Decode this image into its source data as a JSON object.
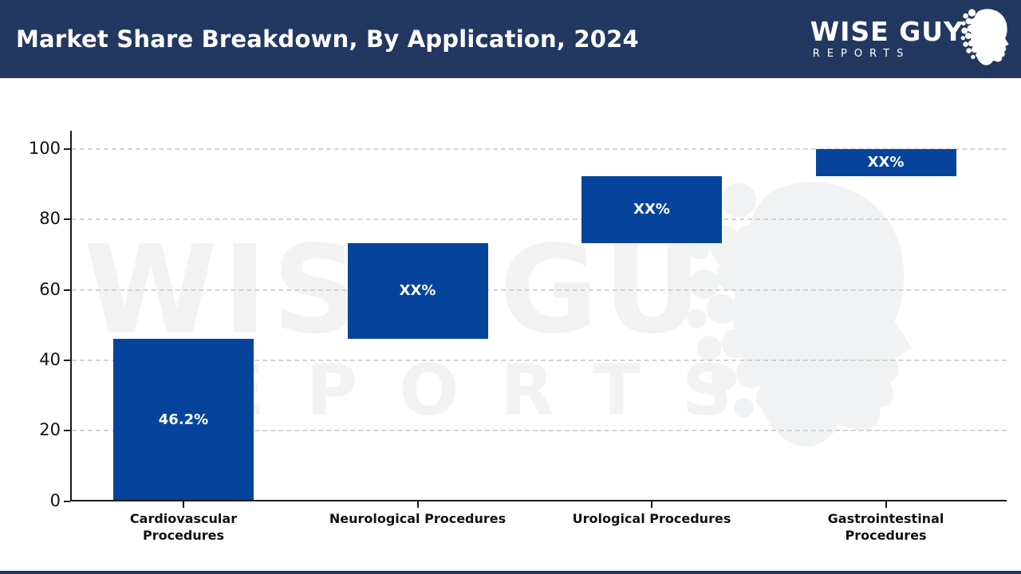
{
  "header": {
    "title": "Market Share Breakdown, By Application, 2024",
    "brand": {
      "line1": "WISE GUY",
      "line2": "REPORTS"
    }
  },
  "watermark": {
    "line1": "WISE GUY",
    "line2": "REPORTS"
  },
  "colors": {
    "header_bg": "#233861",
    "bar": "#05449a",
    "bar_label": "#ffffff",
    "grid": "#d4d4d4",
    "watermark": "#f2f2f3"
  },
  "chart_data": {
    "type": "bar",
    "subtype": "stacked-waterfall-floating-bars",
    "title": "Market Share Breakdown, By Application, 2024",
    "categories": [
      "Cardiovascular Procedures",
      "Neurological Procedures",
      "Urological Procedures",
      "Gastrointestinal Procedures"
    ],
    "series": [
      {
        "name": "Market share (%)",
        "segments": [
          {
            "category": "Cardiovascular Procedures",
            "start": 0,
            "end": 46.2,
            "label": "46.2%"
          },
          {
            "category": "Neurological Procedures",
            "start": 46.2,
            "end": 73.3,
            "label": "XX%"
          },
          {
            "category": "Urological Procedures",
            "start": 73.3,
            "end": 92.3,
            "label": "XX%"
          },
          {
            "category": "Gastrointestinal Procedures",
            "start": 92.3,
            "end": 100,
            "label": "XX%"
          }
        ]
      }
    ],
    "xlabel": "",
    "ylabel": "",
    "ylim": [
      0,
      100
    ],
    "yticks": [
      0,
      20,
      40,
      60,
      80,
      100
    ],
    "grid": true,
    "grid_style": "dashed",
    "legend": false,
    "bar_color": "#05449a",
    "bar_label_color": "#ffffff"
  }
}
